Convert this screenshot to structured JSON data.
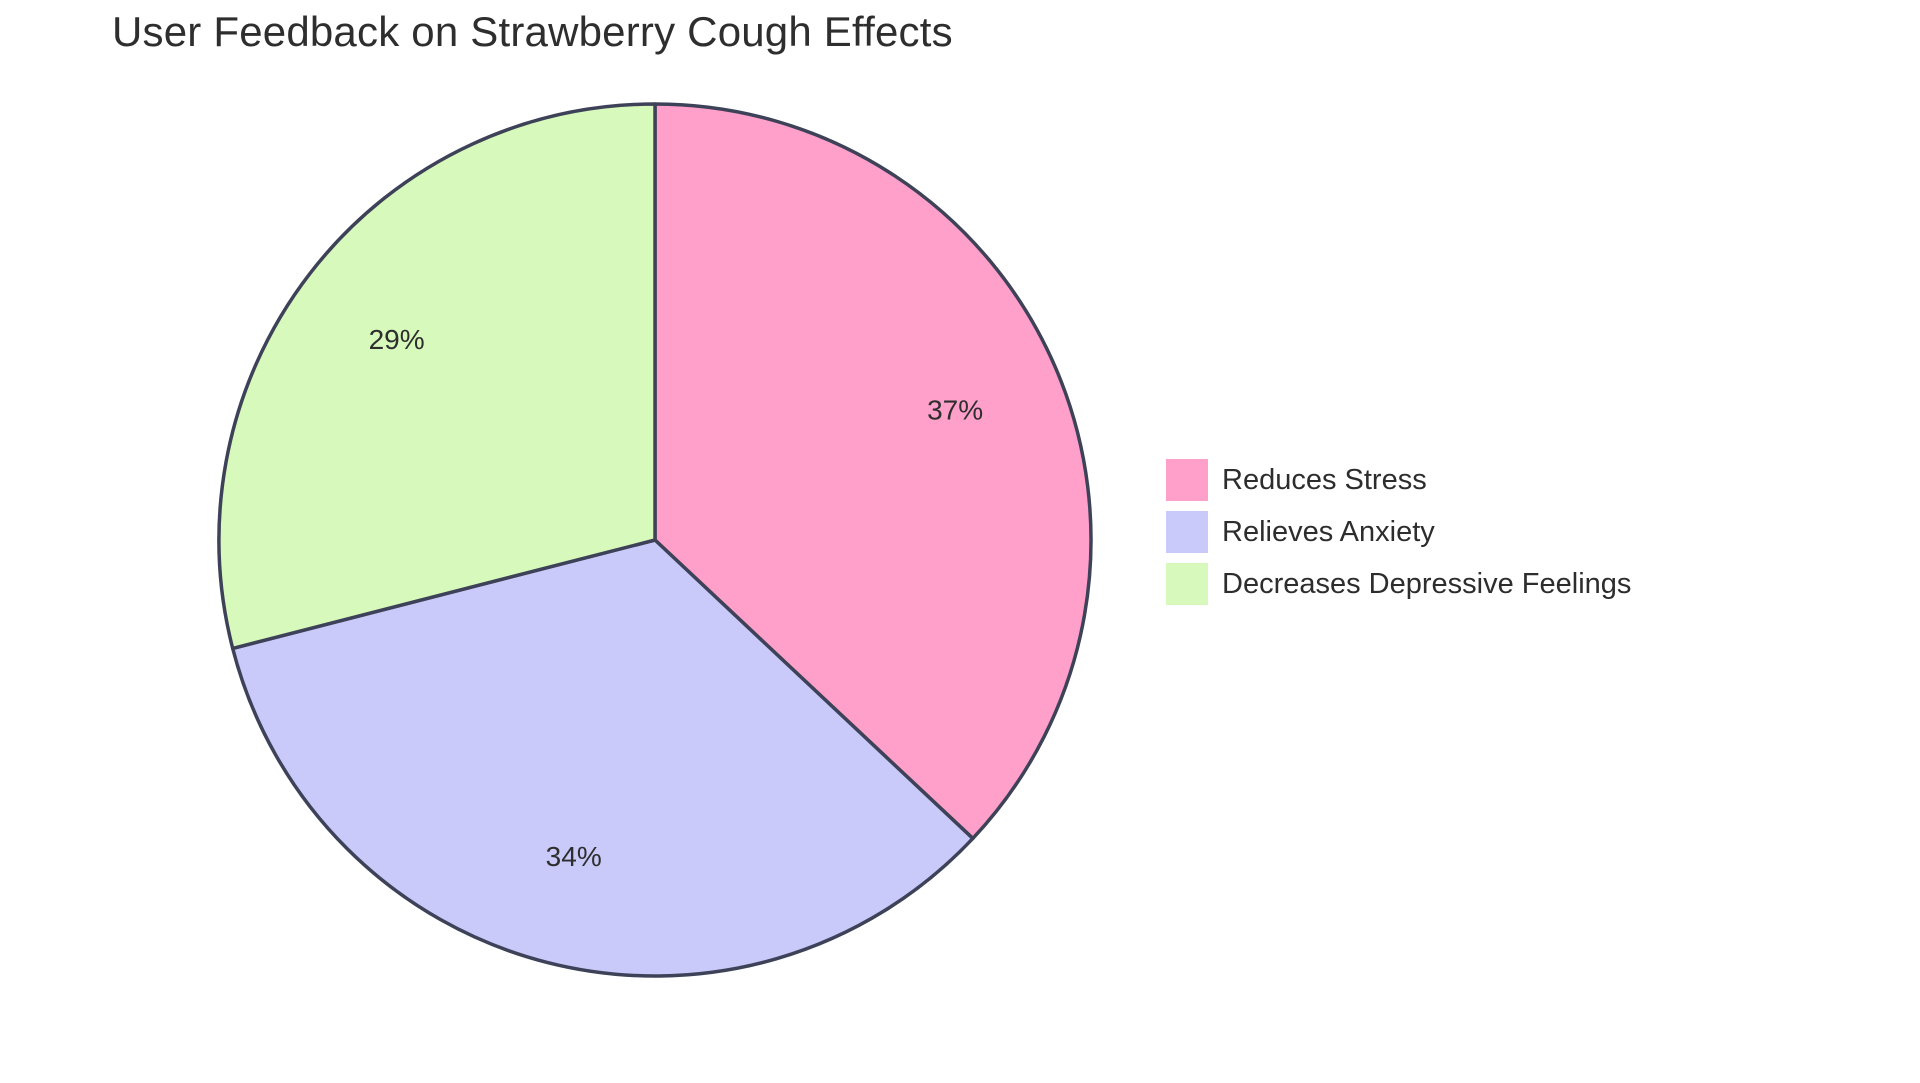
{
  "title": "User Feedback on Strawberry Cough Effects",
  "chart_data": {
    "type": "pie",
    "title": "User Feedback on Strawberry Cough Effects",
    "categories": [
      "Reduces Stress",
      "Relieves Anxiety",
      "Decreases Depressive Feelings"
    ],
    "values": [
      37,
      34,
      29
    ],
    "percent_labels": [
      "37%",
      "34%",
      "29%"
    ],
    "colors": [
      "#FFA0CB",
      "#C9C9FA",
      "#D8F9BC"
    ],
    "slice_border_color": "#3E4258",
    "slice_border_width": 3.5,
    "label_text_color": "#2e2e2e",
    "start_angle": "12 o'clock",
    "direction": "clockwise",
    "legend_position": "right",
    "background": "#ffffff"
  }
}
